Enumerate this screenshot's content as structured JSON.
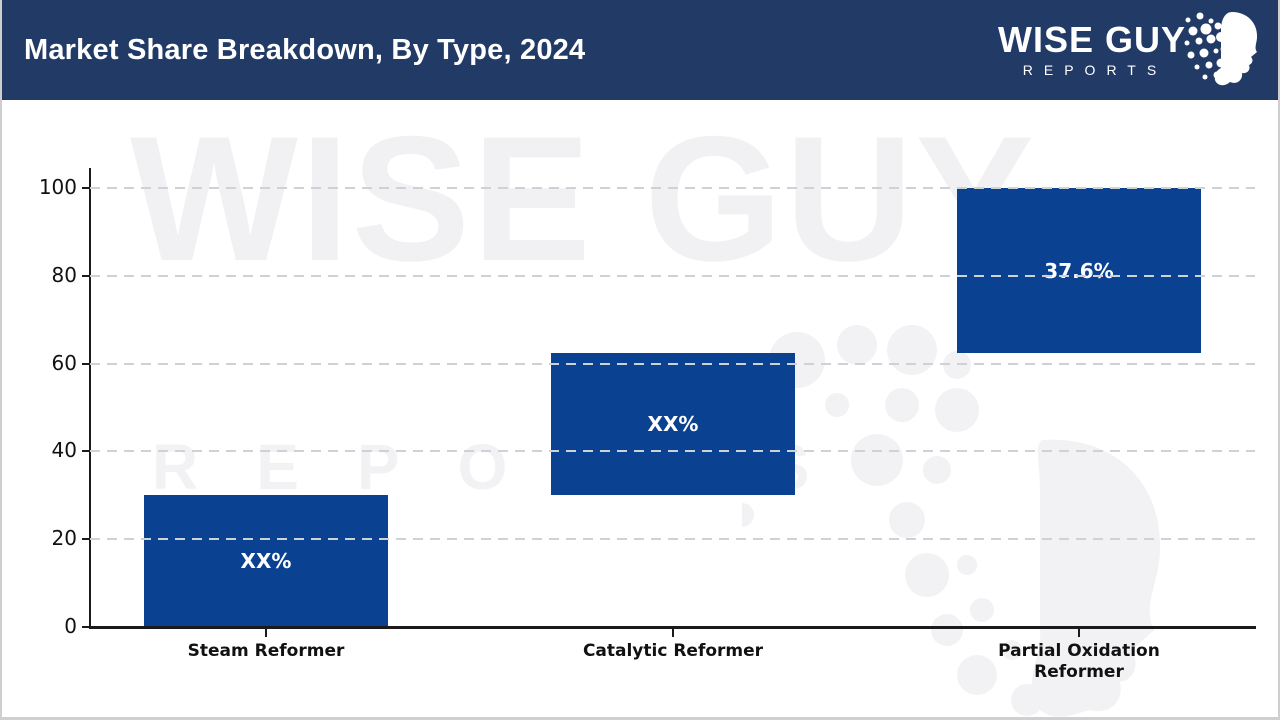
{
  "header": {
    "title": "Market Share Breakdown, By Type, 2024",
    "bg_color": "#223a66",
    "logo": {
      "line1": "WISE GUY",
      "line2": "REPORTS"
    }
  },
  "watermark": {
    "line1": "WISE GUY",
    "line2": "REPORTS"
  },
  "chart_data": {
    "type": "bar",
    "subtype": "floating-segment-bars (segments stack to 100%)",
    "title": "Market Share Breakdown, By Type, 2024",
    "categories": [
      "Steam Reformer",
      "Catalytic Reformer",
      "Partial Oxidation Reformer"
    ],
    "series": [
      {
        "name": "Market Share %",
        "segments": [
          {
            "category": "Steam Reformer",
            "start": 0,
            "end": 30,
            "label": "XX%"
          },
          {
            "category": "Catalytic Reformer",
            "start": 30,
            "end": 62.4,
            "label": "XX%"
          },
          {
            "category": "Partial Oxidation Reformer",
            "start": 62.4,
            "end": 100,
            "label": "37.6%"
          }
        ]
      }
    ],
    "yticks": [
      0,
      20,
      40,
      60,
      80,
      100
    ],
    "ylim": [
      0,
      105
    ],
    "xlabel": "",
    "ylabel": "",
    "grid": "horizontal dashed, drawn over bars",
    "legend": "none",
    "bar_color": "#0b4191",
    "bar_label_color": "#ffffff",
    "axis_color": "#1a1a1a"
  }
}
